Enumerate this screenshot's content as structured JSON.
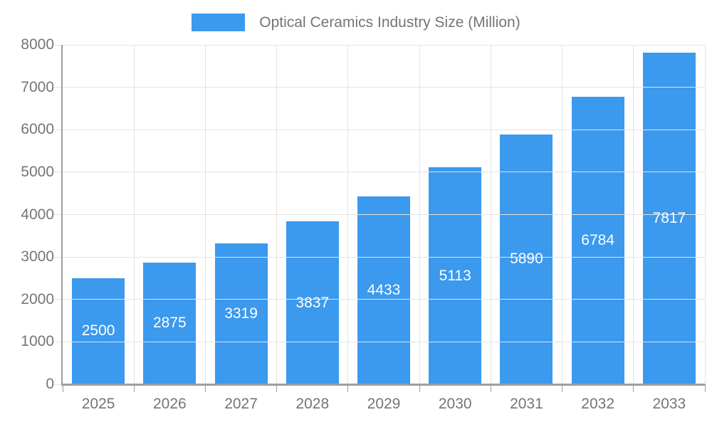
{
  "chart_data": {
    "type": "bar",
    "title": "Optical Ceramics Industry Size (Million)",
    "series": [
      {
        "name": "Optical Ceramics Industry Size (Million)",
        "values": [
          2500,
          2875,
          3319,
          3837,
          4433,
          5113,
          5890,
          6784,
          7817
        ]
      }
    ],
    "categories": [
      "2025",
      "2026",
      "2027",
      "2028",
      "2029",
      "2030",
      "2031",
      "2032",
      "2033"
    ],
    "values": [
      2500,
      2875,
      3319,
      3837,
      4433,
      5113,
      5890,
      6784,
      7817
    ],
    "value_labels": [
      "2500",
      "2875",
      "3319",
      "3837",
      "4433",
      "5113",
      "5890",
      "6784",
      "7817"
    ],
    "xlabel": "",
    "ylabel": "",
    "ylim": [
      0,
      8000
    ],
    "yticks": [
      0,
      1000,
      2000,
      3000,
      4000,
      5000,
      6000,
      7000,
      8000
    ],
    "grid": true,
    "legend_position": "top-center",
    "colors": {
      "bar": "#3B99EE",
      "value_text": "#ffffff",
      "axis_text": "#757575",
      "grid": "#e3e3e3",
      "axis_line": "#9e9e9e"
    }
  }
}
